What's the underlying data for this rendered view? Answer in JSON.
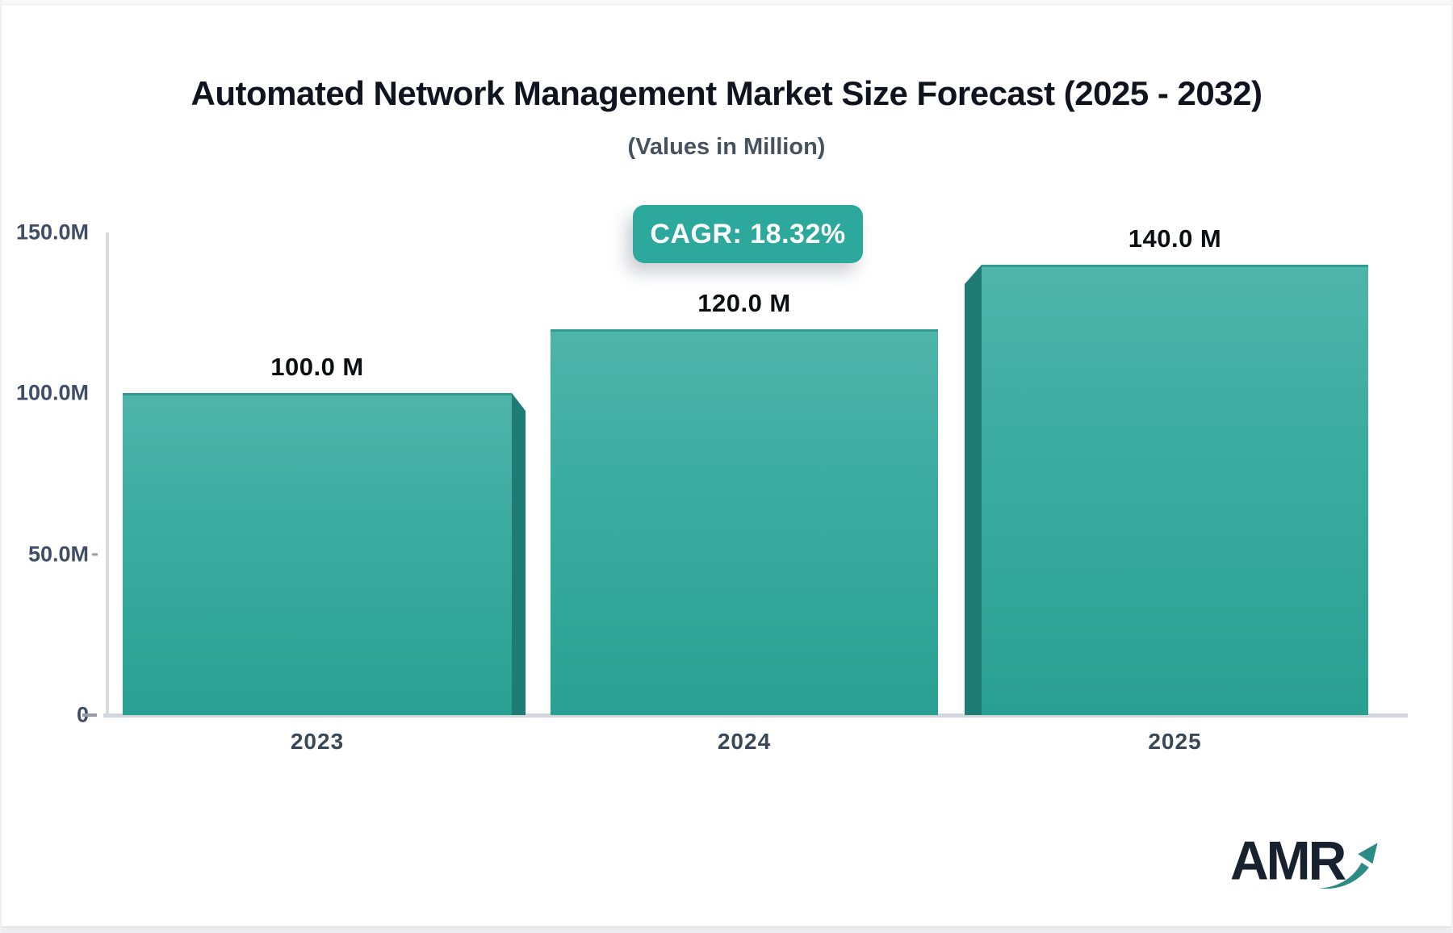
{
  "header": {
    "title": "Automated Network Management Market Size Forecast (2025 - 2032)",
    "subtitle": "(Values in Million)"
  },
  "badge": {
    "label": "CAGR: 18.32%"
  },
  "chart_data": {
    "type": "bar",
    "title": "Automated Network Management Market Size Forecast (2025 - 2032)",
    "subtitle": "(Values in Million)",
    "unit": "Million",
    "cagr_percent": 18.32,
    "categories": [
      "2023",
      "2024",
      "2025"
    ],
    "values": [
      100,
      120,
      140
    ],
    "bar_labels": [
      "100.0 M",
      "120.0 M",
      "140.0 M"
    ],
    "ylim": [
      0,
      150
    ],
    "yticks": [
      {
        "value": 150,
        "label": "150.0M"
      },
      {
        "value": 100,
        "label": "100.0M"
      },
      {
        "value": 50,
        "label": "50.0M"
      },
      {
        "value": 0,
        "label": "0"
      }
    ],
    "grid": false,
    "legend": "none",
    "colors": {
      "bar_top": "#4fb4aa",
      "bar_bottom": "#2aa093",
      "bar_side": "#1f7c75",
      "badge_bg": "#2ca99c"
    }
  },
  "logo": {
    "text": "AMR"
  }
}
